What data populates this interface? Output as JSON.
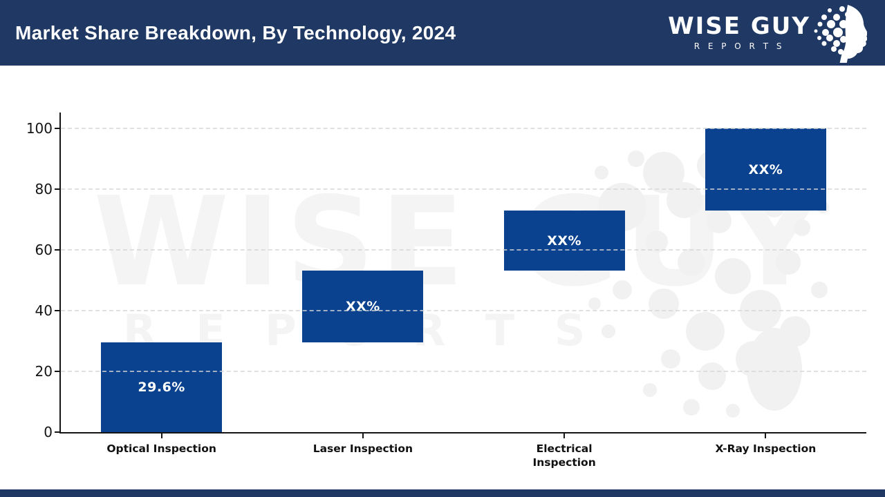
{
  "header": {
    "title": "Market Share Breakdown, By Technology, 2024",
    "background_color": "#1f3864",
    "logo": {
      "brand": "WISE GUY",
      "tagline": "R E P O R T S"
    }
  },
  "watermark": {
    "brand": "WISE GUY",
    "tagline": "R E P O R T S"
  },
  "chart_data": {
    "type": "bar",
    "subtype": "waterfall",
    "title": "Market Share Breakdown, By Technology, 2024",
    "categories": [
      "Optical Inspection",
      "Laser Inspection",
      "Electrical Inspection",
      "X-Ray Inspection"
    ],
    "category_display_lines": [
      [
        "Optical Inspection"
      ],
      [
        "Laser Inspection"
      ],
      [
        "Electrical",
        "Inspection"
      ],
      [
        "X-Ray Inspection"
      ]
    ],
    "segments": [
      {
        "category": "Optical Inspection",
        "start": 0,
        "end": 29.6,
        "value_label": "29.6%"
      },
      {
        "category": "Laser Inspection",
        "start": 29.6,
        "end": 53.2,
        "value_label": "XX%"
      },
      {
        "category": "Electrical Inspection",
        "start": 53.2,
        "end": 72.9,
        "value_label": "XX%"
      },
      {
        "category": "X-Ray Inspection",
        "start": 72.9,
        "end": 99.8,
        "value_label": "XX%"
      }
    ],
    "xlabel": "",
    "ylabel": "",
    "ylim": [
      0,
      105
    ],
    "yticks": [
      0,
      20,
      40,
      60,
      80,
      100
    ],
    "grid": true,
    "grid_style": "dashed",
    "bar_color": "#0a428f",
    "bar_label_color": "#ffffff",
    "axis_color": "#141414",
    "grid_color": "#d9d9d9"
  },
  "footer": {
    "background_color": "#1f3864"
  }
}
